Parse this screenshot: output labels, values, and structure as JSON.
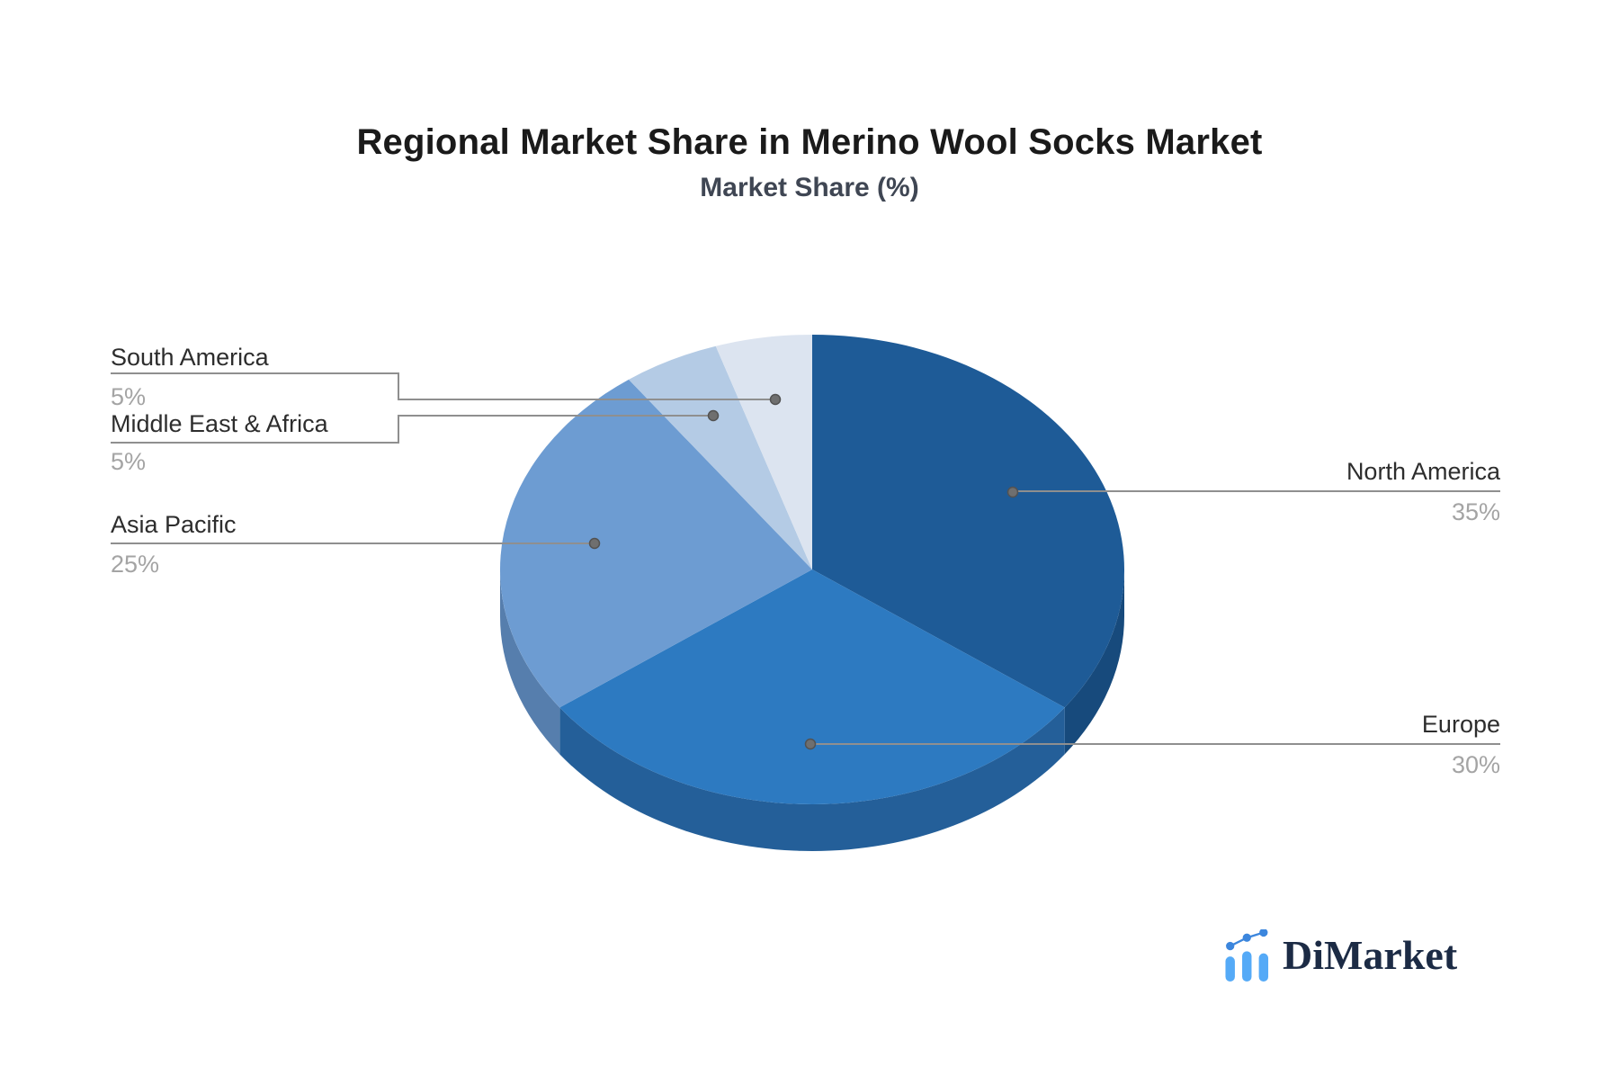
{
  "header": {
    "title": "Regional Market Share in Merino Wool Socks Market",
    "subtitle": "Market Share (%)"
  },
  "chart_data": {
    "type": "pie",
    "style": "3d",
    "title": "Regional Market Share in Merino Wool Socks Market",
    "subtitle": "Market Share (%)",
    "unit": "%",
    "direction": "clockwise",
    "start_angle_deg": 0,
    "legend_position": "callout-labels",
    "categories": [
      "North America",
      "Europe",
      "Asia Pacific",
      "Middle East & Africa",
      "South America"
    ],
    "values": [
      35,
      30,
      25,
      5,
      5
    ],
    "value_labels": [
      "35%",
      "30%",
      "25%",
      "5%",
      "5%"
    ],
    "colors_top": [
      "#1e5b97",
      "#2d7ac1",
      "#6d9cd2",
      "#b4cbe5",
      "#dce4f0"
    ],
    "colors_side": [
      "#174a7c",
      "#245f99",
      "#567ead",
      "#9db8d8",
      "#c4d2e4"
    ]
  },
  "logo": {
    "text": "DiMarket",
    "icon": "bar-line-chart-icon",
    "bar_color": "#55aaf7",
    "dot_color": "#3c86dd",
    "text_color": "#1c2b45"
  }
}
